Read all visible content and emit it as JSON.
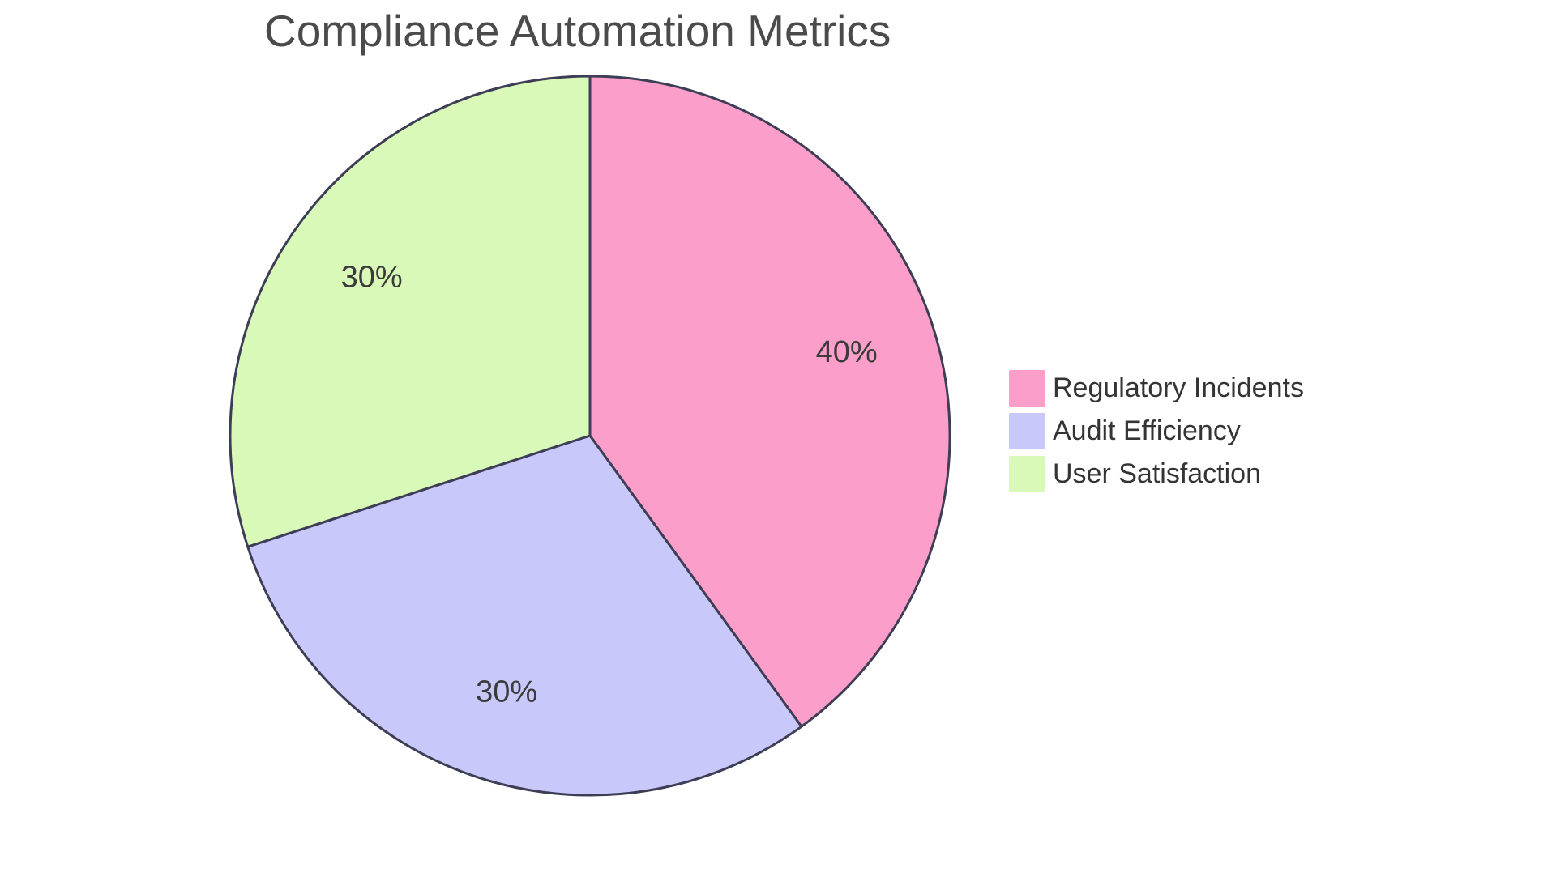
{
  "title": "Compliance Automation Metrics",
  "chart_data": {
    "type": "pie",
    "title": "Compliance Automation Metrics",
    "slices": [
      {
        "label": "Regulatory Incidents",
        "value": 40,
        "pct_label": "40%",
        "color": "#FB9FCA"
      },
      {
        "label": "Audit Efficiency",
        "value": 30,
        "pct_label": "30%",
        "color": "#C8C9FA"
      },
      {
        "label": "User Satisfaction",
        "value": 30,
        "pct_label": "30%",
        "color": "#D9F9B8"
      }
    ],
    "start_angle_deg": 0,
    "direction": "clockwise",
    "stroke_color": "#3E3D56",
    "stroke_width": 3,
    "legend_position": "right",
    "background": "#FFFFFF",
    "title_color": "#4B4B4B",
    "label_color": "#3B3B3B"
  },
  "legend": {
    "items": [
      {
        "label": "Regulatory Incidents",
        "color": "#FB9FCA"
      },
      {
        "label": "Audit Efficiency",
        "color": "#C8C9FA"
      },
      {
        "label": "User Satisfaction",
        "color": "#D9F9B8"
      }
    ]
  }
}
